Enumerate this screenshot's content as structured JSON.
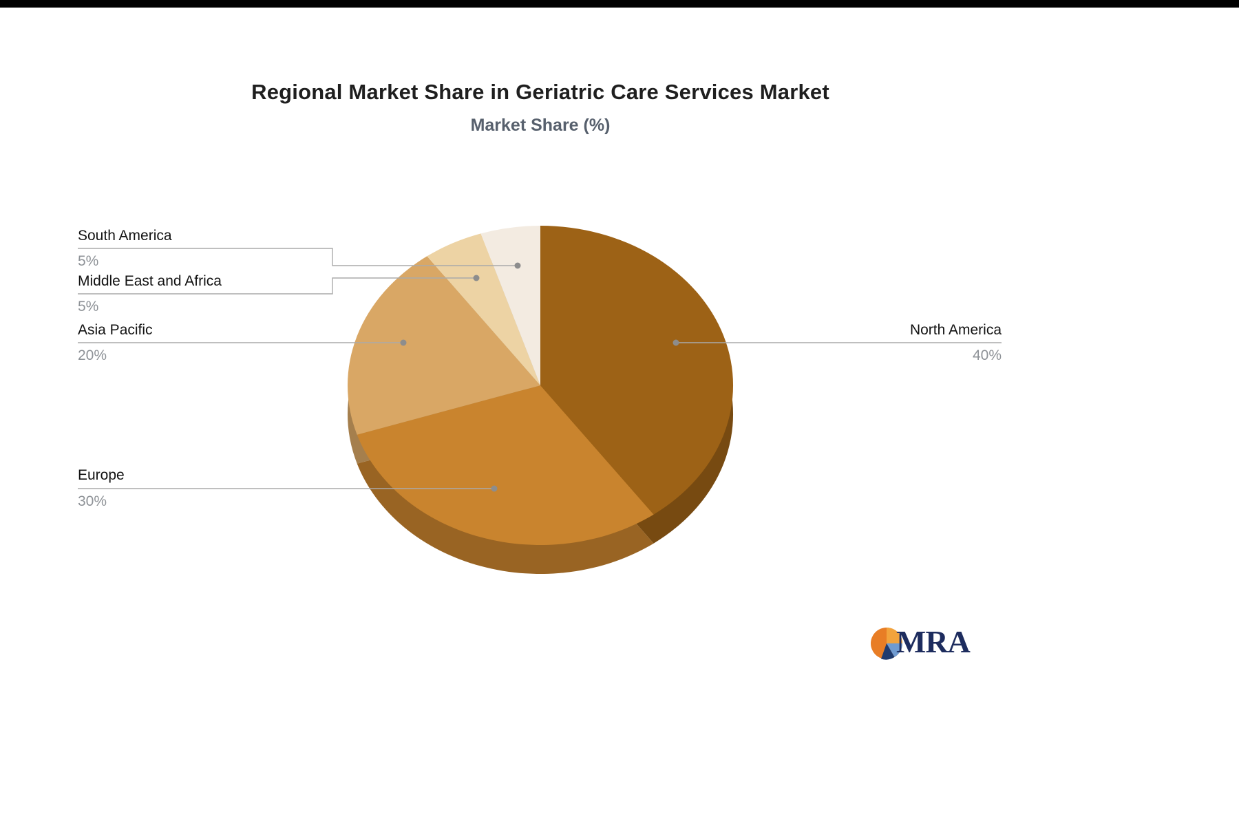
{
  "page": {
    "title": "Regional Market Share in Geriatric Care Services Market",
    "subtitle": "Market Share (%)"
  },
  "chart_data": {
    "type": "pie",
    "style": "3d",
    "title": "Regional Market Share in Geriatric Care Services Market",
    "subtitle": "Market Share (%)",
    "unit": "%",
    "labels": [
      "North America",
      "Europe",
      "Asia Pacific",
      "Middle East and Africa",
      "South America"
    ],
    "values": [
      40,
      30,
      20,
      5,
      5
    ],
    "value_labels": [
      "40%",
      "30%",
      "20%",
      "5%",
      "5%"
    ],
    "colors": [
      "#9d6216",
      "#c9842e",
      "#d9a765",
      "#edd3a4",
      "#f3ebe1"
    ],
    "legend_position": "callouts",
    "start_angle_deg": 0,
    "direction": "clockwise"
  },
  "logo": {
    "text": "MRA",
    "accent_orange": "#e87d25",
    "accent_light_orange": "#f2a33c",
    "accent_navy": "#1e3a6e",
    "accent_blue": "#6f9bd1",
    "text_color": "#1d2c5e"
  }
}
